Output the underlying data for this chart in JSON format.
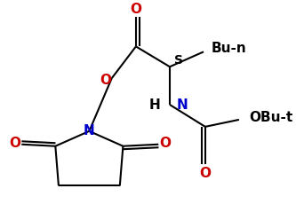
{
  "background": "#ffffff",
  "line_color": "#000000",
  "figsize": [
    3.33,
    2.39
  ],
  "dpi": 100,
  "xlim": [
    0,
    333
  ],
  "ylim": [
    0,
    239
  ]
}
